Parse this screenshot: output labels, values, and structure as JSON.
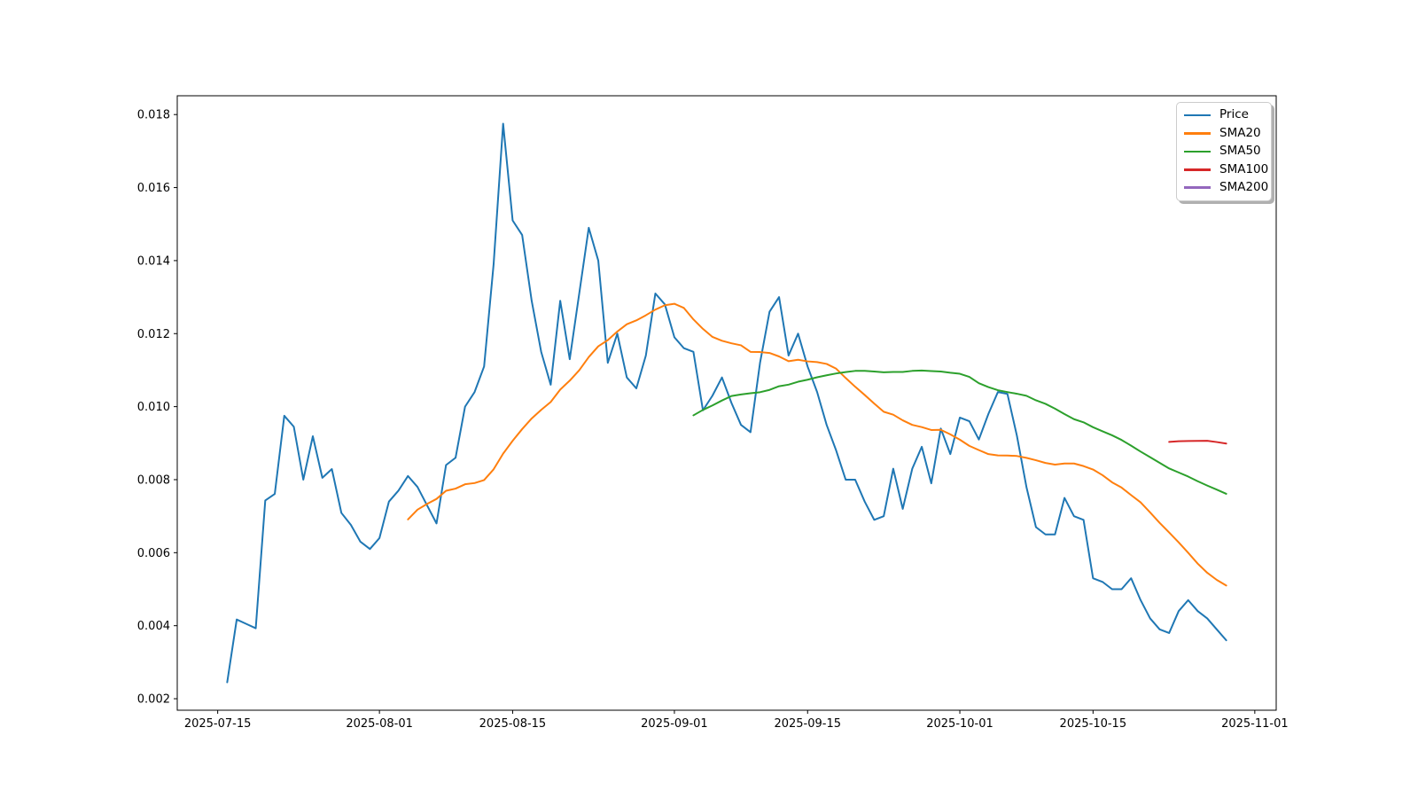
{
  "chart_data": {
    "type": "line",
    "title": "",
    "grid": false,
    "background_color": "#ffffff",
    "x_base_date": "2025-07-15",
    "xlim_days": [
      -4.25,
      111.25
    ],
    "ylim": [
      0.001685,
      0.018515
    ],
    "x_tick_labels": [
      "2025-07-15",
      "2025-08-01",
      "2025-08-15",
      "2025-09-01",
      "2025-09-15",
      "2025-10-01",
      "2025-10-15",
      "2025-11-01"
    ],
    "y_tick_labels": [
      "0.002",
      "0.004",
      "0.006",
      "0.008",
      "0.010",
      "0.012",
      "0.014",
      "0.016",
      "0.018"
    ],
    "y_tick_values": [
      0.002,
      0.004,
      0.006,
      0.008,
      0.01,
      0.012,
      0.014,
      0.016,
      0.018
    ],
    "legend": {
      "position": "upper-right",
      "entries": [
        "Price",
        "SMA20",
        "SMA50",
        "SMA100",
        "SMA200"
      ]
    },
    "series_start_date": "2025-07-16",
    "frequency": "daily",
    "price": [
      0.00245,
      0.00417,
      0.00405,
      0.00393,
      0.00743,
      0.00761,
      0.00975,
      0.00945,
      0.008,
      0.00919,
      0.00805,
      0.00829,
      0.00709,
      0.00676,
      0.0063,
      0.0061,
      0.0064,
      0.0074,
      0.0077,
      0.0081,
      0.0078,
      0.0073,
      0.0068,
      0.0084,
      0.0086,
      0.01,
      0.0104,
      0.0111,
      0.0139,
      0.01775,
      0.0151,
      0.0147,
      0.0129,
      0.0115,
      0.0106,
      0.0129,
      0.0113,
      0.0131,
      0.0149,
      0.014,
      0.0112,
      0.012,
      0.0108,
      0.0105,
      0.0114,
      0.0131,
      0.0128,
      0.0119,
      0.0116,
      0.0115,
      0.0099,
      0.0103,
      0.0108,
      0.0101,
      0.0095,
      0.0093,
      0.0112,
      0.0126,
      0.013,
      0.0114,
      0.012,
      0.0111,
      0.0104,
      0.0095,
      0.0088,
      0.008,
      0.008,
      0.0074,
      0.0069,
      0.007,
      0.0083,
      0.0072,
      0.0083,
      0.0089,
      0.0079,
      0.0094,
      0.0087,
      0.0097,
      0.0096,
      0.0091,
      0.0098,
      0.0104,
      0.01035,
      0.0092,
      0.0078,
      0.0067,
      0.0065,
      0.0065,
      0.0075,
      0.007,
      0.0069,
      0.0053,
      0.0052,
      0.005,
      0.005,
      0.0053,
      0.0047,
      0.0042,
      0.0039,
      0.0038,
      0.0044,
      0.0047,
      0.0044,
      0.0042,
      0.0039,
      0.0036
    ],
    "series": [
      {
        "name": "Price",
        "color": "#1f77b4",
        "kind": "price"
      },
      {
        "name": "SMA20",
        "color": "#ff7f0e",
        "kind": "sma",
        "window": 20
      },
      {
        "name": "SMA50",
        "color": "#2ca02c",
        "kind": "sma",
        "window": 50
      },
      {
        "name": "SMA100",
        "color": "#d62728",
        "kind": "sma",
        "window": 100
      },
      {
        "name": "SMA200",
        "color": "#9467bd",
        "kind": "sma",
        "window": 200
      }
    ]
  }
}
